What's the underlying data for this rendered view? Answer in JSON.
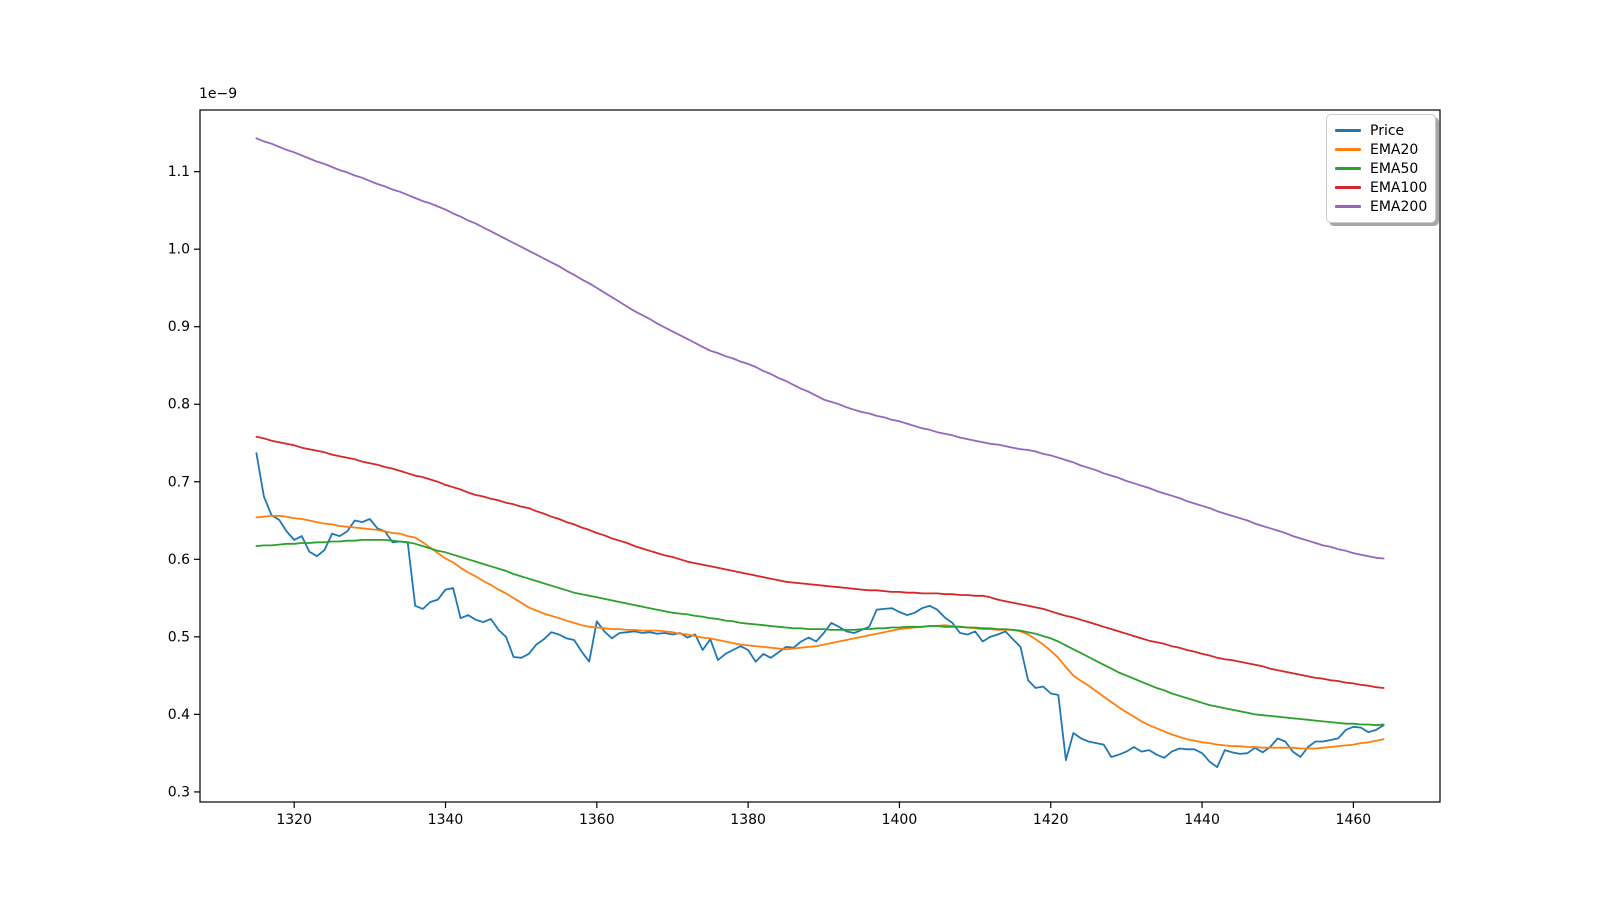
{
  "chart_data": {
    "type": "line",
    "title": "",
    "xlabel": "",
    "ylabel": "",
    "y_offset_label": "1e−9",
    "y_scale_note": "y tick values are multiplied by 1e-9",
    "grid": false,
    "legend_position": "upper right",
    "xlim": [
      1307.55,
      1471.45
    ],
    "ylim": [
      0.287,
      1.1795
    ],
    "xticks": [
      1320,
      1340,
      1360,
      1380,
      1400,
      1420,
      1440,
      1460
    ],
    "xtick_labels": [
      "1320",
      "1340",
      "1360",
      "1380",
      "1400",
      "1420",
      "1440",
      "1460"
    ],
    "yticks": [
      0.3,
      0.4,
      0.5,
      0.6,
      0.7,
      0.8,
      0.9,
      1.0,
      1.1
    ],
    "ytick_labels": [
      "0.3",
      "0.4",
      "0.5",
      "0.6",
      "0.7",
      "0.8",
      "0.9",
      "1.0",
      "1.1"
    ],
    "x": [
      1315,
      1316,
      1317,
      1318,
      1319,
      1320,
      1321,
      1322,
      1323,
      1324,
      1325,
      1326,
      1327,
      1328,
      1329,
      1330,
      1331,
      1332,
      1333,
      1334,
      1335,
      1336,
      1337,
      1338,
      1339,
      1340,
      1341,
      1342,
      1343,
      1344,
      1345,
      1346,
      1347,
      1348,
      1349,
      1350,
      1351,
      1352,
      1353,
      1354,
      1355,
      1356,
      1357,
      1358,
      1359,
      1360,
      1361,
      1362,
      1363,
      1364,
      1365,
      1366,
      1367,
      1368,
      1369,
      1370,
      1371,
      1372,
      1373,
      1374,
      1375,
      1376,
      1377,
      1378,
      1379,
      1380,
      1381,
      1382,
      1383,
      1384,
      1385,
      1386,
      1387,
      1388,
      1389,
      1390,
      1391,
      1392,
      1393,
      1394,
      1395,
      1396,
      1397,
      1398,
      1399,
      1400,
      1401,
      1402,
      1403,
      1404,
      1405,
      1406,
      1407,
      1408,
      1409,
      1410,
      1411,
      1412,
      1413,
      1414,
      1415,
      1416,
      1417,
      1418,
      1419,
      1420,
      1421,
      1422,
      1423,
      1424,
      1425,
      1426,
      1427,
      1428,
      1429,
      1430,
      1431,
      1432,
      1433,
      1434,
      1435,
      1436,
      1437,
      1438,
      1439,
      1440,
      1441,
      1442,
      1443,
      1444,
      1445,
      1446,
      1447,
      1448,
      1449,
      1450,
      1451,
      1452,
      1453,
      1454,
      1455,
      1456,
      1457,
      1458,
      1459,
      1460,
      1461,
      1462,
      1463,
      1464
    ],
    "series": [
      {
        "name": "Price",
        "color": "#1f77b4",
        "values": [
          0.737,
          0.681,
          0.657,
          0.651,
          0.636,
          0.625,
          0.63,
          0.61,
          0.604,
          0.612,
          0.633,
          0.63,
          0.636,
          0.65,
          0.648,
          0.652,
          0.64,
          0.636,
          0.622,
          0.623,
          0.622,
          0.54,
          0.536,
          0.545,
          0.548,
          0.561,
          0.563,
          0.524,
          0.528,
          0.522,
          0.519,
          0.523,
          0.509,
          0.5,
          0.474,
          0.473,
          0.478,
          0.49,
          0.497,
          0.506,
          0.503,
          0.498,
          0.496,
          0.481,
          0.468,
          0.52,
          0.507,
          0.498,
          0.505,
          0.506,
          0.507,
          0.505,
          0.506,
          0.504,
          0.505,
          0.503,
          0.505,
          0.499,
          0.503,
          0.483,
          0.497,
          0.47,
          0.478,
          0.483,
          0.488,
          0.483,
          0.468,
          0.478,
          0.473,
          0.48,
          0.487,
          0.486,
          0.494,
          0.499,
          0.494,
          0.505,
          0.518,
          0.513,
          0.507,
          0.505,
          0.509,
          0.513,
          0.535,
          0.536,
          0.537,
          0.532,
          0.528,
          0.531,
          0.537,
          0.54,
          0.535,
          0.525,
          0.518,
          0.505,
          0.503,
          0.507,
          0.494,
          0.5,
          0.503,
          0.507,
          0.497,
          0.487,
          0.444,
          0.434,
          0.436,
          0.427,
          0.425,
          0.341,
          0.376,
          0.369,
          0.365,
          0.363,
          0.361,
          0.345,
          0.348,
          0.352,
          0.358,
          0.352,
          0.354,
          0.348,
          0.344,
          0.352,
          0.356,
          0.355,
          0.355,
          0.35,
          0.339,
          0.332,
          0.354,
          0.351,
          0.349,
          0.35,
          0.357,
          0.351,
          0.358,
          0.369,
          0.365,
          0.352,
          0.345,
          0.358,
          0.365,
          0.365,
          0.367,
          0.369,
          0.38,
          0.384,
          0.383,
          0.377,
          0.38,
          0.386
        ]
      },
      {
        "name": "EMA20",
        "color": "#ff7f0e",
        "values": [
          0.654,
          0.655,
          0.656,
          0.656,
          0.655,
          0.653,
          0.652,
          0.65,
          0.648,
          0.646,
          0.645,
          0.643,
          0.642,
          0.641,
          0.64,
          0.639,
          0.638,
          0.636,
          0.634,
          0.633,
          0.63,
          0.628,
          0.622,
          0.615,
          0.608,
          0.601,
          0.596,
          0.589,
          0.583,
          0.578,
          0.572,
          0.567,
          0.561,
          0.556,
          0.55,
          0.544,
          0.538,
          0.534,
          0.53,
          0.527,
          0.524,
          0.521,
          0.518,
          0.515,
          0.513,
          0.512,
          0.511,
          0.51,
          0.51,
          0.509,
          0.509,
          0.508,
          0.508,
          0.508,
          0.507,
          0.506,
          0.504,
          0.503,
          0.501,
          0.499,
          0.498,
          0.496,
          0.494,
          0.492,
          0.49,
          0.489,
          0.488,
          0.487,
          0.486,
          0.485,
          0.484,
          0.485,
          0.486,
          0.487,
          0.488,
          0.49,
          0.492,
          0.494,
          0.496,
          0.498,
          0.5,
          0.502,
          0.504,
          0.506,
          0.508,
          0.51,
          0.511,
          0.512,
          0.513,
          0.514,
          0.514,
          0.515,
          0.514,
          0.513,
          0.512,
          0.511,
          0.51,
          0.51,
          0.509,
          0.509,
          0.509,
          0.507,
          0.503,
          0.497,
          0.49,
          0.482,
          0.473,
          0.461,
          0.45,
          0.443,
          0.437,
          0.43,
          0.423,
          0.416,
          0.409,
          0.403,
          0.397,
          0.391,
          0.386,
          0.382,
          0.378,
          0.374,
          0.371,
          0.368,
          0.366,
          0.364,
          0.363,
          0.361,
          0.36,
          0.359,
          0.359,
          0.358,
          0.358,
          0.357,
          0.357,
          0.357,
          0.357,
          0.357,
          0.356,
          0.356,
          0.356,
          0.357,
          0.358,
          0.359,
          0.36,
          0.361,
          0.363,
          0.364,
          0.366,
          0.368
        ]
      },
      {
        "name": "EMA50",
        "color": "#2ca02c",
        "values": [
          0.617,
          0.618,
          0.618,
          0.619,
          0.62,
          0.62,
          0.621,
          0.621,
          0.622,
          0.622,
          0.623,
          0.623,
          0.624,
          0.624,
          0.625,
          0.625,
          0.625,
          0.625,
          0.624,
          0.623,
          0.622,
          0.62,
          0.617,
          0.614,
          0.611,
          0.609,
          0.606,
          0.603,
          0.6,
          0.597,
          0.594,
          0.591,
          0.588,
          0.585,
          0.581,
          0.578,
          0.575,
          0.572,
          0.569,
          0.566,
          0.563,
          0.56,
          0.557,
          0.555,
          0.553,
          0.551,
          0.549,
          0.547,
          0.545,
          0.543,
          0.541,
          0.539,
          0.537,
          0.535,
          0.533,
          0.531,
          0.53,
          0.529,
          0.527,
          0.526,
          0.524,
          0.523,
          0.521,
          0.52,
          0.518,
          0.517,
          0.516,
          0.515,
          0.514,
          0.513,
          0.512,
          0.511,
          0.511,
          0.51,
          0.51,
          0.51,
          0.509,
          0.509,
          0.509,
          0.509,
          0.51,
          0.51,
          0.511,
          0.511,
          0.512,
          0.512,
          0.513,
          0.513,
          0.513,
          0.514,
          0.514,
          0.513,
          0.513,
          0.513,
          0.512,
          0.512,
          0.511,
          0.511,
          0.51,
          0.51,
          0.509,
          0.508,
          0.506,
          0.504,
          0.501,
          0.498,
          0.494,
          0.489,
          0.484,
          0.479,
          0.474,
          0.469,
          0.464,
          0.459,
          0.454,
          0.45,
          0.446,
          0.442,
          0.438,
          0.434,
          0.431,
          0.427,
          0.424,
          0.421,
          0.418,
          0.415,
          0.412,
          0.41,
          0.408,
          0.406,
          0.404,
          0.402,
          0.4,
          0.399,
          0.398,
          0.397,
          0.396,
          0.395,
          0.394,
          0.393,
          0.392,
          0.391,
          0.39,
          0.389,
          0.388,
          0.388,
          0.387,
          0.387,
          0.386,
          0.387
        ]
      },
      {
        "name": "EMA100",
        "color": "#d62728",
        "values": [
          0.758,
          0.756,
          0.753,
          0.751,
          0.749,
          0.747,
          0.744,
          0.742,
          0.74,
          0.738,
          0.735,
          0.733,
          0.731,
          0.729,
          0.726,
          0.724,
          0.722,
          0.719,
          0.717,
          0.714,
          0.711,
          0.708,
          0.706,
          0.703,
          0.7,
          0.696,
          0.693,
          0.69,
          0.686,
          0.683,
          0.681,
          0.678,
          0.676,
          0.673,
          0.671,
          0.668,
          0.666,
          0.662,
          0.659,
          0.655,
          0.652,
          0.648,
          0.645,
          0.641,
          0.638,
          0.634,
          0.631,
          0.627,
          0.624,
          0.621,
          0.617,
          0.614,
          0.611,
          0.608,
          0.605,
          0.603,
          0.6,
          0.597,
          0.595,
          0.593,
          0.591,
          0.589,
          0.587,
          0.585,
          0.583,
          0.581,
          0.579,
          0.577,
          0.575,
          0.573,
          0.571,
          0.57,
          0.569,
          0.568,
          0.567,
          0.566,
          0.565,
          0.564,
          0.563,
          0.562,
          0.561,
          0.56,
          0.56,
          0.559,
          0.558,
          0.558,
          0.557,
          0.557,
          0.556,
          0.556,
          0.556,
          0.555,
          0.555,
          0.554,
          0.554,
          0.553,
          0.553,
          0.551,
          0.548,
          0.546,
          0.544,
          0.542,
          0.54,
          0.538,
          0.536,
          0.533,
          0.53,
          0.527,
          0.525,
          0.522,
          0.519,
          0.516,
          0.513,
          0.51,
          0.507,
          0.504,
          0.501,
          0.498,
          0.495,
          0.493,
          0.491,
          0.488,
          0.486,
          0.483,
          0.481,
          0.478,
          0.476,
          0.473,
          0.471,
          0.47,
          0.468,
          0.466,
          0.464,
          0.462,
          0.459,
          0.457,
          0.455,
          0.453,
          0.451,
          0.449,
          0.447,
          0.446,
          0.444,
          0.443,
          0.441,
          0.44,
          0.438,
          0.437,
          0.435,
          0.434
        ]
      },
      {
        "name": "EMA200",
        "color": "#9467bd",
        "values": [
          1.143,
          1.139,
          1.136,
          1.132,
          1.128,
          1.125,
          1.121,
          1.117,
          1.113,
          1.11,
          1.106,
          1.102,
          1.099,
          1.095,
          1.092,
          1.088,
          1.084,
          1.081,
          1.077,
          1.074,
          1.07,
          1.066,
          1.062,
          1.059,
          1.055,
          1.051,
          1.046,
          1.042,
          1.037,
          1.033,
          1.028,
          1.023,
          1.018,
          1.013,
          1.008,
          1.003,
          0.998,
          0.993,
          0.988,
          0.983,
          0.978,
          0.972,
          0.967,
          0.961,
          0.956,
          0.95,
          0.944,
          0.938,
          0.932,
          0.926,
          0.92,
          0.915,
          0.91,
          0.904,
          0.899,
          0.894,
          0.889,
          0.884,
          0.879,
          0.874,
          0.869,
          0.866,
          0.862,
          0.859,
          0.855,
          0.852,
          0.848,
          0.843,
          0.839,
          0.834,
          0.83,
          0.825,
          0.82,
          0.816,
          0.811,
          0.806,
          0.803,
          0.8,
          0.796,
          0.793,
          0.79,
          0.788,
          0.785,
          0.783,
          0.78,
          0.778,
          0.775,
          0.772,
          0.769,
          0.767,
          0.764,
          0.762,
          0.76,
          0.757,
          0.755,
          0.753,
          0.751,
          0.749,
          0.748,
          0.746,
          0.744,
          0.742,
          0.741,
          0.739,
          0.736,
          0.734,
          0.731,
          0.728,
          0.725,
          0.721,
          0.718,
          0.715,
          0.711,
          0.708,
          0.705,
          0.701,
          0.698,
          0.695,
          0.692,
          0.688,
          0.685,
          0.682,
          0.679,
          0.675,
          0.672,
          0.669,
          0.666,
          0.662,
          0.659,
          0.656,
          0.653,
          0.65,
          0.646,
          0.643,
          0.64,
          0.637,
          0.634,
          0.63,
          0.627,
          0.624,
          0.621,
          0.618,
          0.616,
          0.613,
          0.611,
          0.608,
          0.606,
          0.604,
          0.602,
          0.601
        ]
      }
    ]
  }
}
